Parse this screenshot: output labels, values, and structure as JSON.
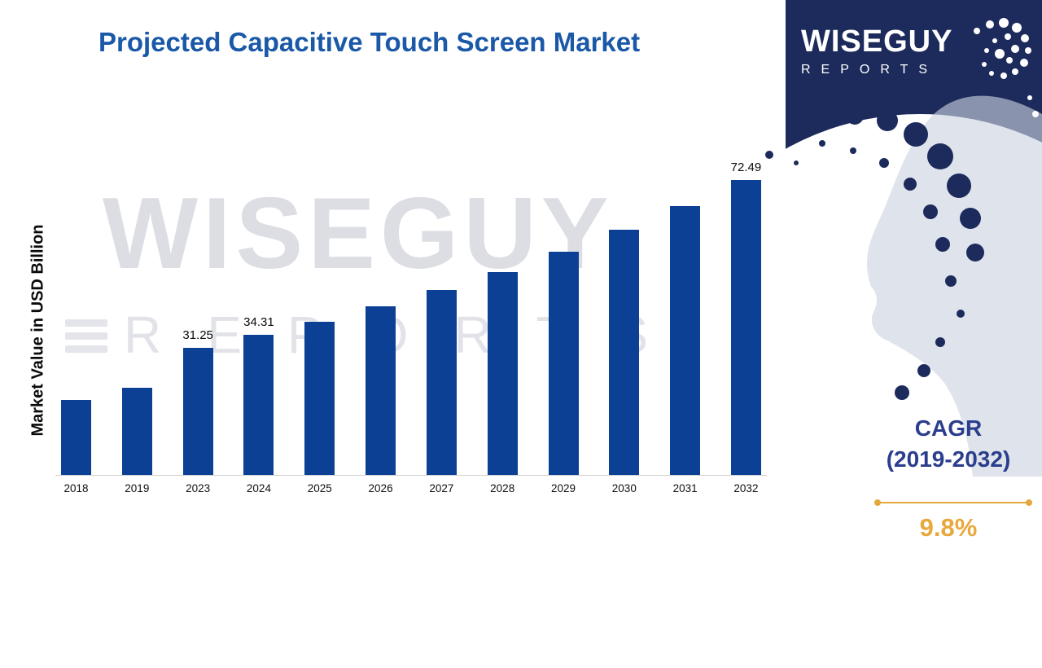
{
  "title": {
    "text": "Projected Capacitive Touch Screen Market"
  },
  "brand": {
    "logo_line1": "WISEGUY",
    "logo_line2": "REPORTS"
  },
  "watermark": {
    "line1": "WISEGUY",
    "line2": "REPORTS"
  },
  "cagr": {
    "label": "CAGR",
    "range": "(2019-2032)",
    "value": "9.8%"
  },
  "colors": {
    "panel_navy": "#1d2b5c",
    "bar_blue": "#0c4094",
    "title_blue": "#1a58a8",
    "cagr_navy": "#2b3e8d",
    "accent_gold": "#e8a83c",
    "watermark_gray": "#dcdee4"
  },
  "chart_data": {
    "type": "bar",
    "title": "Projected Capacitive Touch Screen Market",
    "xlabel": "",
    "ylabel": "Market Value in USD Billion",
    "categories": [
      "2018",
      "2019",
      "2023",
      "2024",
      "2025",
      "2026",
      "2027",
      "2028",
      "2029",
      "2030",
      "2031",
      "2032"
    ],
    "values": [
      18.5,
      21.5,
      31.25,
      34.31,
      37.67,
      41.37,
      45.42,
      49.87,
      54.76,
      60.12,
      66.02,
      72.49
    ],
    "data_labels": [
      "",
      "",
      "31.25",
      "34.31",
      "",
      "",
      "",
      "",
      "",
      "",
      "",
      "72.49"
    ],
    "ylim": [
      0,
      75
    ],
    "bar_color": "#0c4094",
    "grid": false,
    "legend": false
  }
}
